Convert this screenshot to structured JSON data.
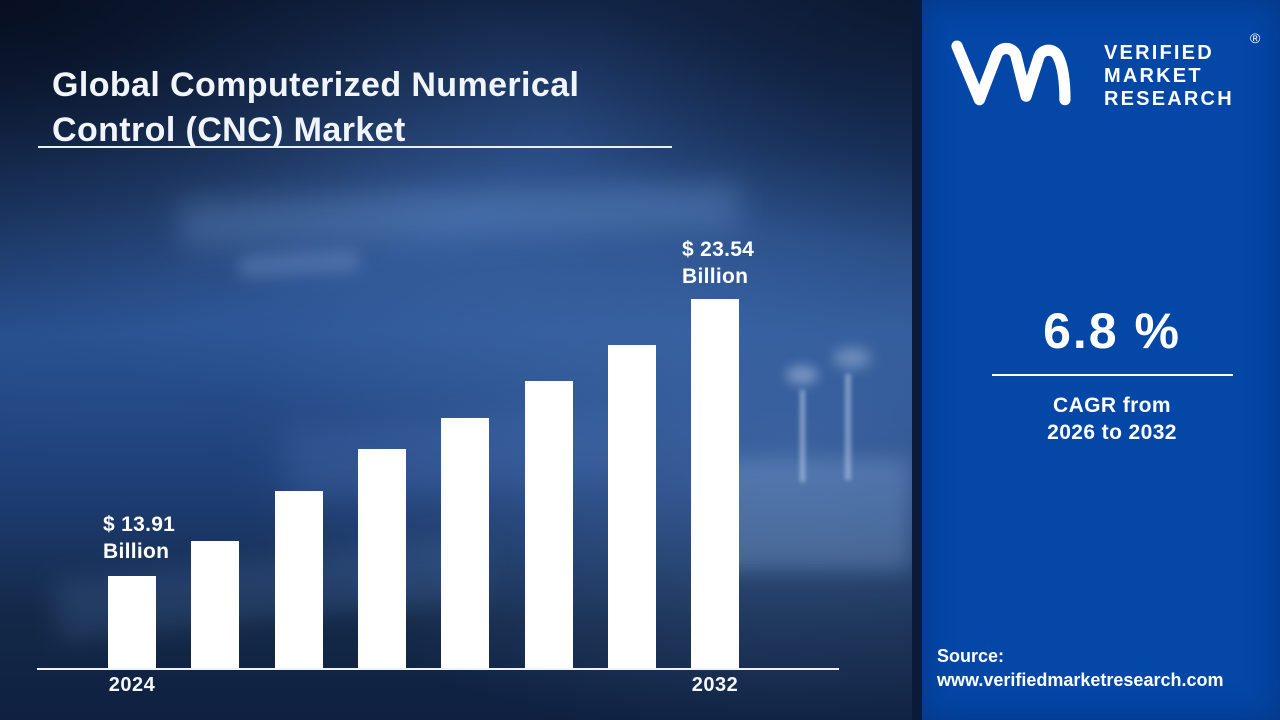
{
  "title": {
    "line1": "Global Computerized Numerical",
    "line2": "Control (CNC) Market"
  },
  "logo": {
    "brand_lines": [
      "VERIFIED",
      "MARKET",
      "RESEARCH"
    ],
    "registered_mark": "®",
    "monogram": "vmr-monogram"
  },
  "stats": {
    "cagr_value": "6.8 %",
    "cagr_caption_line1": "CAGR from",
    "cagr_caption_line2": "2026 to 2032"
  },
  "source": {
    "label": "Source:",
    "url": "www.verifiedmarketresearch.com"
  },
  "chart_data": {
    "type": "bar",
    "title": "Global Computerized Numerical Control (CNC) Market",
    "unit": "USD Billion",
    "x_tick_labels": [
      "2024",
      "",
      "",
      "",
      "",
      "",
      "",
      "2032"
    ],
    "values": [
      13.91,
      15.13,
      16.87,
      18.33,
      19.4,
      20.69,
      21.94,
      23.54
    ],
    "labeled_points": [
      {
        "index": 0,
        "label": "$ 13.91 Billion"
      },
      {
        "index": 7,
        "label": "$ 23.54 Billion"
      }
    ],
    "first_bar_label": {
      "line1": "$ 13.91",
      "line2": "Billion"
    },
    "last_bar_label": {
      "line1": "$ 23.54",
      "line2": "Billion"
    },
    "bar_color": "#ffffff",
    "ylim": [
      0,
      26
    ],
    "grid": false,
    "legend": "none"
  },
  "colors": {
    "panel_blue": "#0447a7",
    "photo_navy": "#14284c",
    "divider_navy": "#0a1a38",
    "bar_white": "#ffffff",
    "text_white": "#ffffff"
  }
}
